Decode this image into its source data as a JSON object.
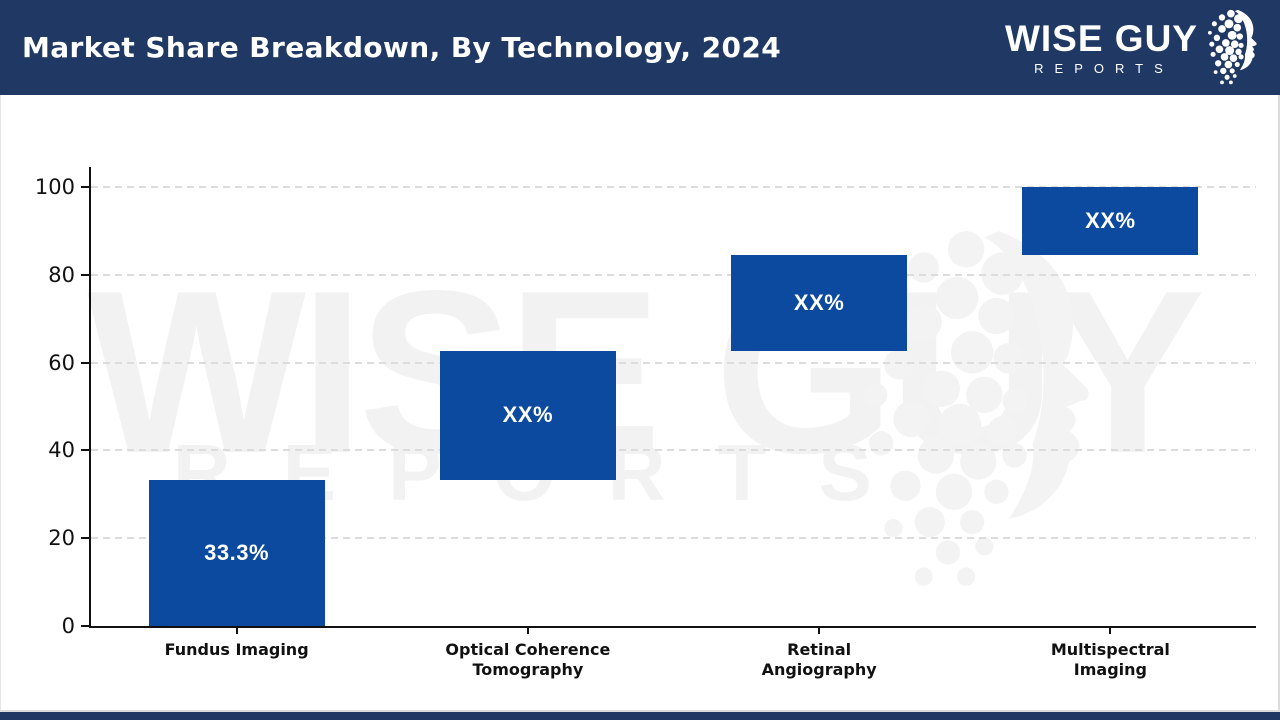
{
  "header": {
    "brand": {
      "line1": "WISE GUY",
      "line2": "REPORTS"
    }
  },
  "watermark": {
    "line1": "WISE GUY",
    "line2": "REPORTS"
  },
  "chart_data": {
    "type": "bar",
    "variant": "floating_stacked_segments",
    "title": "Market Share Breakdown, By Technology, 2024",
    "categories": [
      [
        "Fundus Imaging"
      ],
      [
        "Optical Coherence",
        "Tomography"
      ],
      [
        "Retinal",
        "Angiography"
      ],
      [
        "Multispectral",
        "Imaging"
      ]
    ],
    "segments": [
      {
        "start": 0,
        "end": 33.3,
        "label": "33.3%"
      },
      {
        "start": 33.3,
        "end": 62.7,
        "label": "XX%"
      },
      {
        "start": 62.7,
        "end": 84.4,
        "label": "XX%"
      },
      {
        "start": 84.4,
        "end": 100,
        "label": "XX%"
      }
    ],
    "ylim": [
      0,
      100
    ],
    "yticks": [
      0,
      20,
      40,
      60,
      80,
      100
    ],
    "grid": {
      "axis": "y",
      "style": "dashed",
      "color": "#dcdcdc"
    },
    "bar_color": "#0b4a9f",
    "bar_label_color": "#ffffff",
    "xlabel": "",
    "ylabel": ""
  },
  "colors": {
    "header_bg": "#1f3864",
    "footer_bg": "#1f3864",
    "bar": "#0b4a9f",
    "watermark": "#f2f2f2",
    "axis": "#111111",
    "grid": "#dcdcdc"
  }
}
